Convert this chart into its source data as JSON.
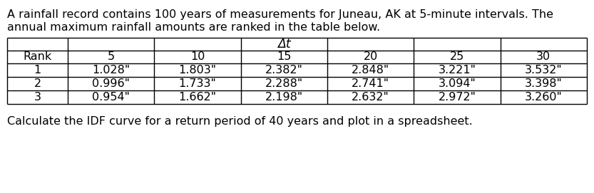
{
  "paragraph1": "A rainfall record contains 100 years of measurements for Juneau, AK at 5-minute intervals. The",
  "paragraph2": "annual maximum rainfall amounts are ranked in the table below.",
  "delta_t_label": "Δt",
  "col_headers": [
    "Rank",
    "5",
    "10",
    "15",
    "20",
    "25",
    "30"
  ],
  "rows": [
    [
      "1",
      "1.028\"",
      "1.803\"",
      "2.382\"",
      "2.848\"",
      "3.221\"",
      "3.532\""
    ],
    [
      "2",
      "0.996\"",
      "1.733\"",
      "2.288\"",
      "2.741\"",
      "3.094\"",
      "3.398\""
    ],
    [
      "3",
      "0.954\"",
      "1.662\"",
      "2.198\"",
      "2.632\"",
      "2.972\"",
      "3.260\""
    ]
  ],
  "footer": "Calculate the IDF curve for a return period of 40 years and plot in a spreadsheet.",
  "bg_color": "#ffffff",
  "text_color": "#000000",
  "body_fontsize": 11.5,
  "table_fontsize": 11.5,
  "delta_fontsize": 12.5
}
